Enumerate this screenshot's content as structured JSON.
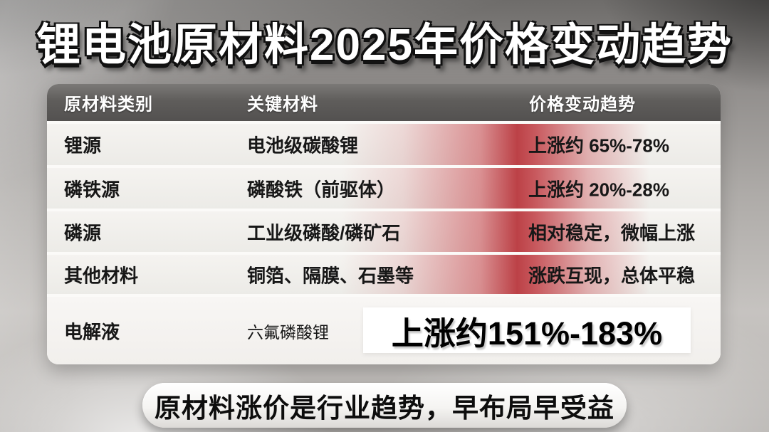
{
  "title": "锂电池原材料2025年价格变动趋势",
  "table": {
    "headers": [
      "原材料类别",
      "关键材料",
      "价格变动趋势"
    ],
    "rows": [
      {
        "category": "锂源",
        "material": "电池级碳酸锂",
        "trend": "上涨约 65%-78%"
      },
      {
        "category": "磷铁源",
        "material": "磷酸铁（前驱体）",
        "trend": "上涨约 20%-28%"
      },
      {
        "category": "磷源",
        "material": "工业级磷酸/磷矿石",
        "trend": "相对稳定，微幅上涨"
      },
      {
        "category": "其他材料",
        "material": "铜箔、隔膜、石墨等",
        "trend": "涨跌互现，总体平稳"
      },
      {
        "category": "电解液",
        "material": "六氟磷酸锂",
        "trend": "上涨约151%-183%"
      }
    ]
  },
  "footer": {
    "banner": "原材料涨价是行业趋势，早布局早受益"
  },
  "colors": {
    "accent_red": "#c2474d",
    "header_bg": "#5c5a57",
    "row_bg": "#f0eeeb",
    "title_color": "#ffffff",
    "text_color": "#171717"
  }
}
